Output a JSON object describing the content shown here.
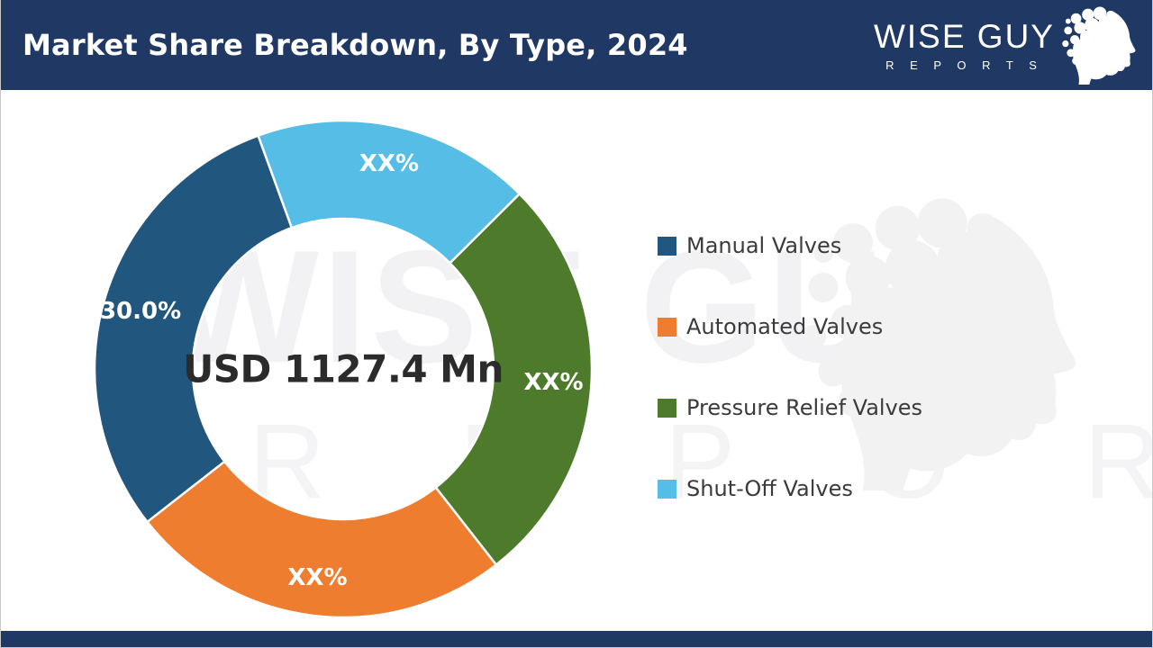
{
  "header": {
    "title": "Market Share Breakdown, By Type, 2024",
    "logo": {
      "line1": "WISE GUY",
      "line2": "R E P O R T S"
    }
  },
  "watermark": {
    "line1": "WISE GUY",
    "line2": "R E P O R T S"
  },
  "chart": {
    "center_value": "USD 1127.4 Mn"
  },
  "chart_data": {
    "type": "pie",
    "subtype": "donut",
    "title": "Market Share Breakdown, By Type, 2024",
    "center_label": "USD 1127.4 Mn",
    "units": "USD Mn",
    "total_value_usd_mn": 1127.4,
    "start_angle_deg": 110,
    "direction": "counterclockwise",
    "legend_position": "right",
    "series": [
      {
        "name": "Manual Valves",
        "share_pct": 30.0,
        "slice_label": "30.0%",
        "color": "#21577e"
      },
      {
        "name": "Automated Valves",
        "share_pct": 25.0,
        "slice_label": "XX%",
        "color": "#ee7d30"
      },
      {
        "name": "Pressure Relief Valves",
        "share_pct": 26.9,
        "slice_label": "XX%",
        "color": "#4d7a2b"
      },
      {
        "name": "Shut-Off Valves",
        "share_pct": 18.1,
        "slice_label": "XX%",
        "color": "#55bde6"
      }
    ]
  }
}
